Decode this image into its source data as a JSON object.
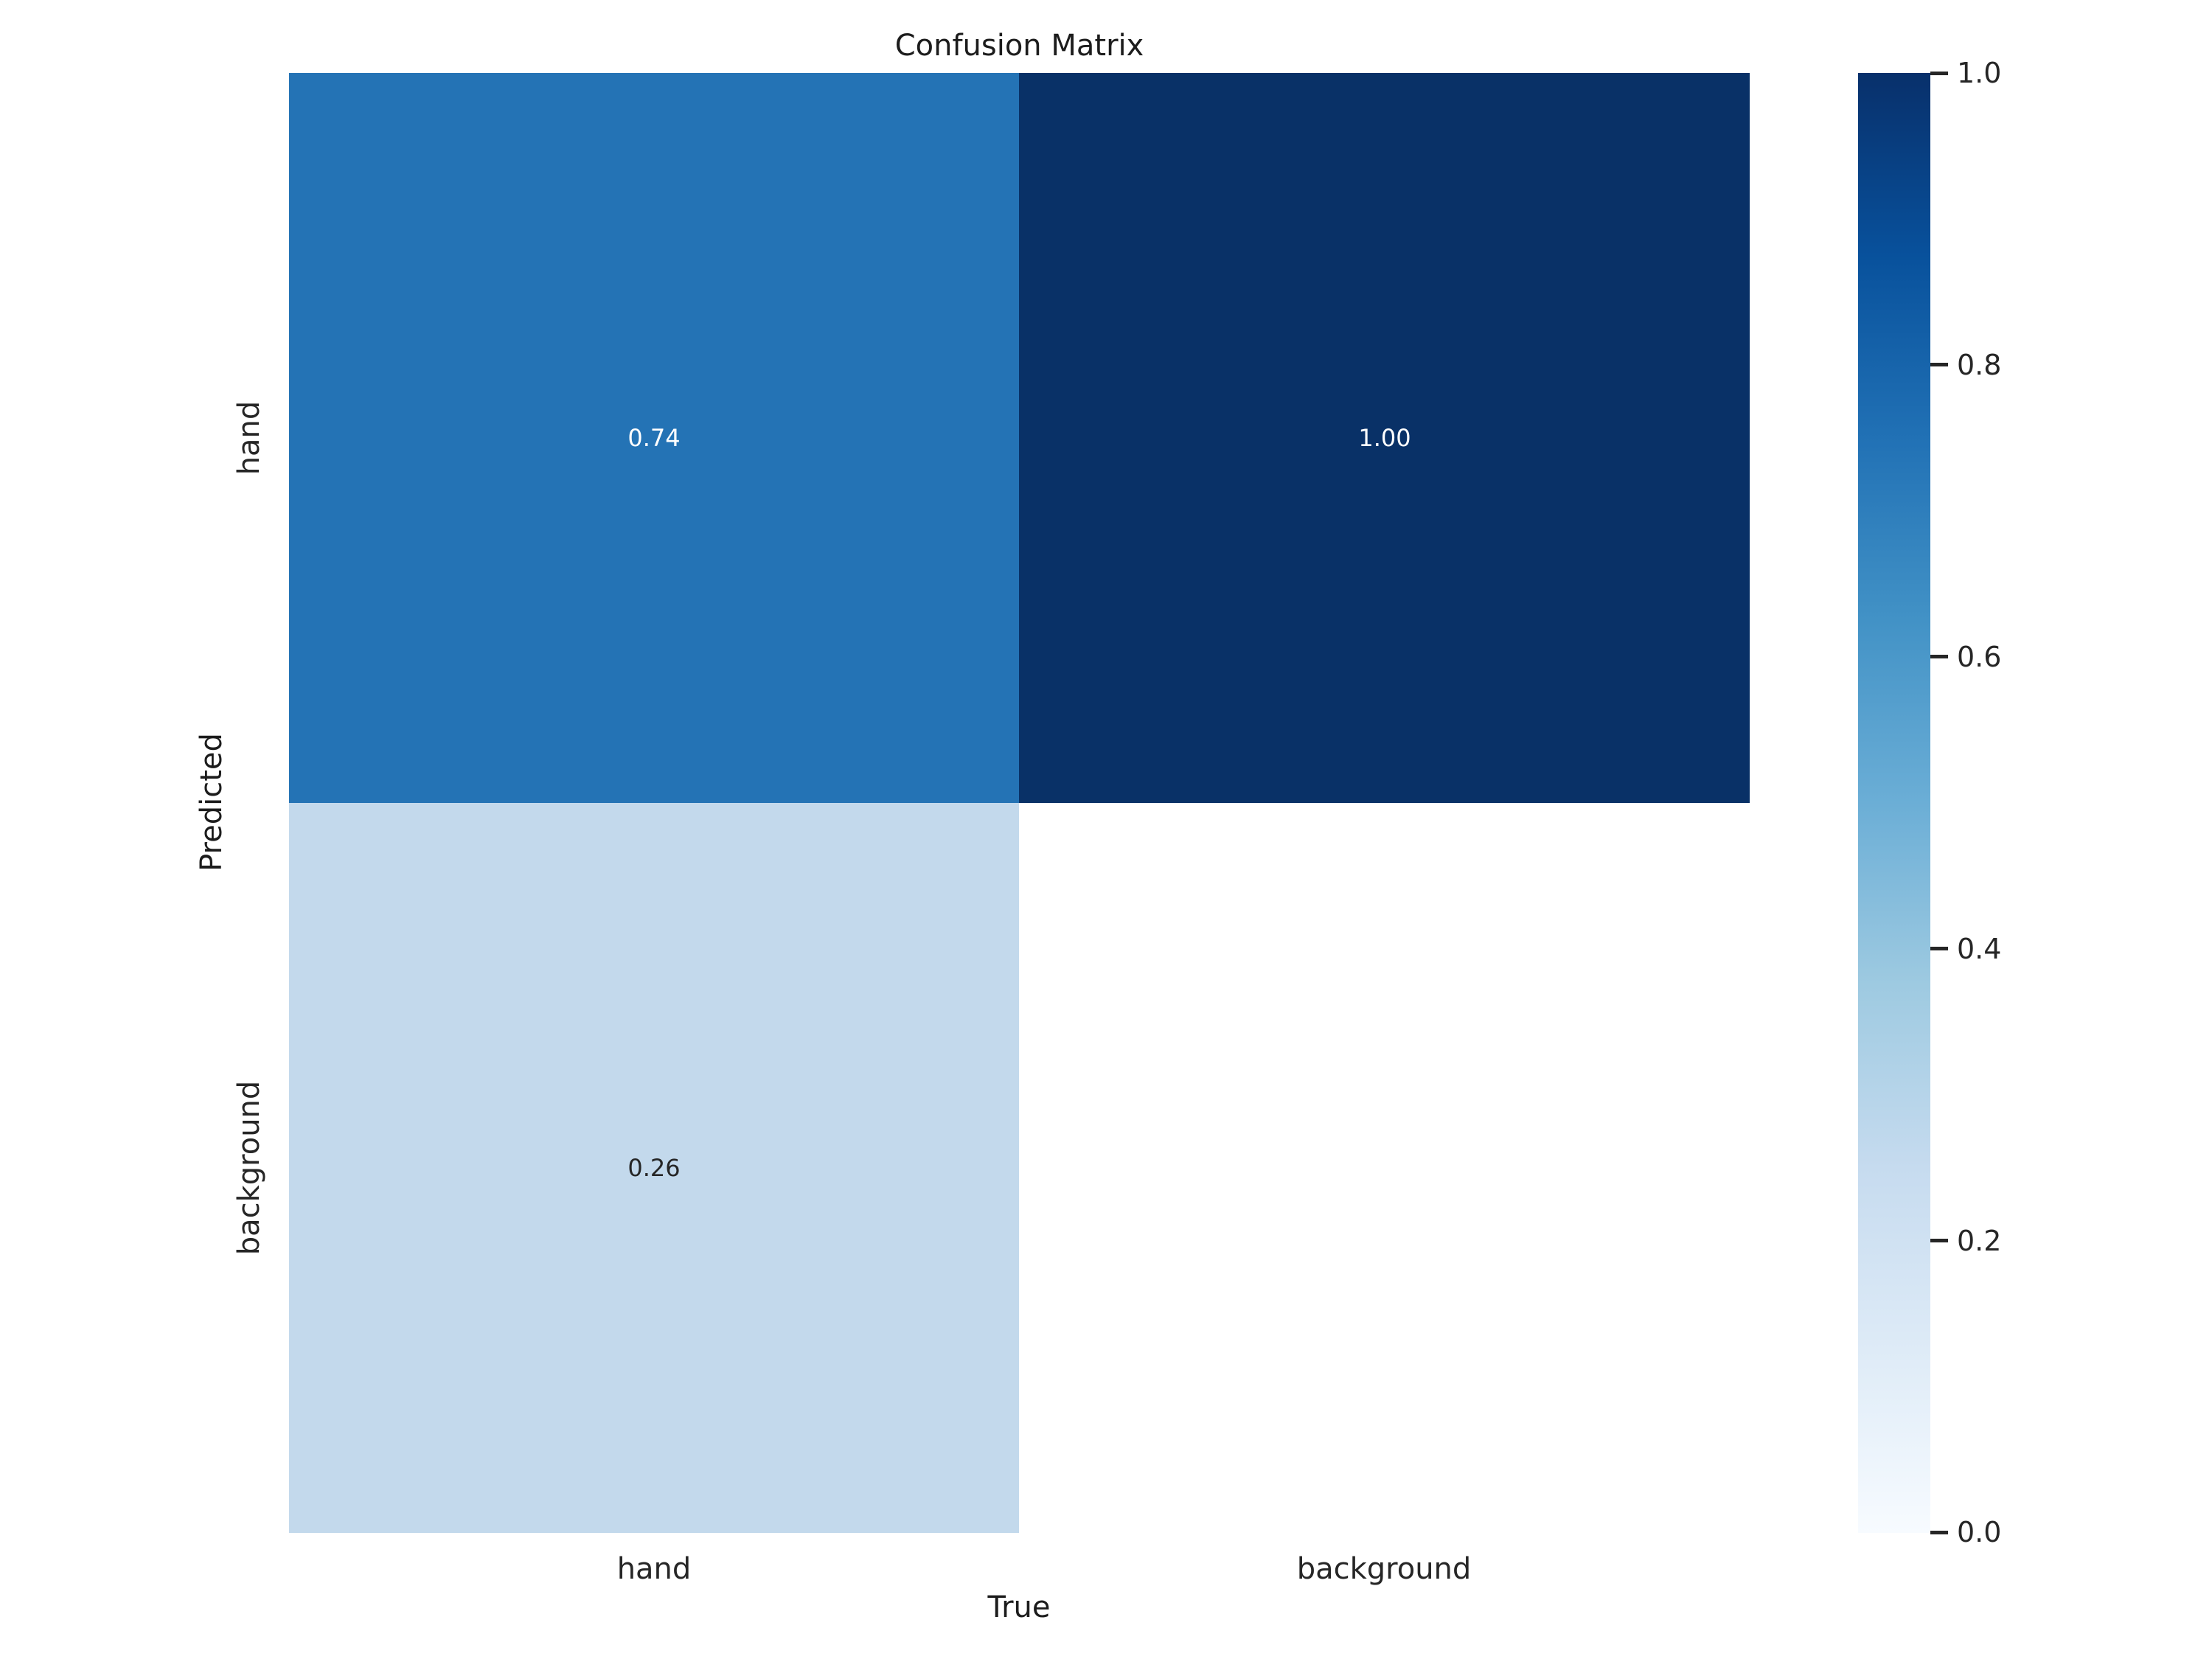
{
  "chart_data": {
    "type": "heatmap",
    "title": "Confusion Matrix",
    "xlabel": "True",
    "ylabel": "Predicted",
    "x_categories": [
      "hand",
      "background"
    ],
    "y_categories": [
      "hand",
      "background"
    ],
    "values": [
      [
        0.74,
        1.0
      ],
      [
        0.26,
        null
      ]
    ],
    "cell_labels": [
      [
        "0.74",
        "1.00"
      ],
      [
        "0.26",
        null
      ]
    ],
    "colormap": "Blues",
    "cell_colors": [
      [
        "#2473b5",
        "#093167"
      ],
      [
        "#c3d9ec",
        "#ffffff"
      ]
    ],
    "annotation_text_colors": [
      [
        "#ffffff",
        "#ffffff"
      ],
      [
        "#262626",
        null
      ]
    ],
    "grid": false,
    "colorbar": {
      "position": "right",
      "min": 0.0,
      "max": 1.0,
      "tick_labels": [
        "1.0",
        "0.8",
        "0.6",
        "0.4",
        "0.2",
        "0.0"
      ]
    },
    "text_color": "#262626",
    "background_color": "#ffffff"
  }
}
